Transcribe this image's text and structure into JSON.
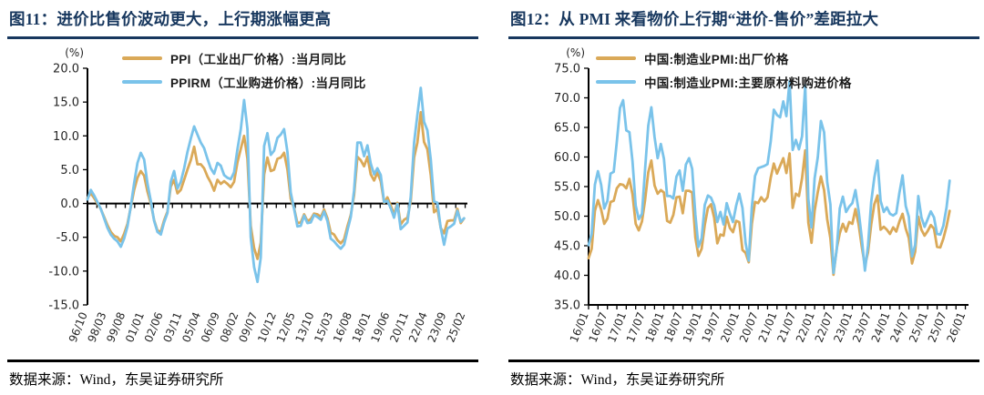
{
  "panels": [
    {
      "title": "图11：进价比售价波动更大，上行期涨幅更高",
      "source": "数据来源：Wind，东吴证券研究所"
    },
    {
      "title": "图12：从 PMI 来看物价上行期“进价-售价”差距拉大",
      "source": "数据来源：Wind，东吴证券研究所"
    }
  ],
  "colors": {
    "title_navy": "#17375E",
    "axis_black": "#000000",
    "ppi_tan": "#DAA958",
    "ppirm_blue": "#7AC3EA"
  },
  "chart_data": [
    {
      "type": "line",
      "key": "ppi-ppirm",
      "title": "图11：进价比售价波动更大，上行期涨幅更高",
      "unit": "(%)",
      "ylim": [
        -15,
        20
      ],
      "yticks": [
        20,
        15,
        10,
        5,
        0,
        -5,
        -10,
        -15
      ],
      "x_axis_at": 0,
      "xlabels": [
        "96/10",
        "98/03",
        "99/08",
        "01/01",
        "02/06",
        "03/11",
        "05/04",
        "06/09",
        "08/02",
        "09/07",
        "10/12",
        "12/05",
        "13/10",
        "15/03",
        "16/08",
        "18/01",
        "19/06",
        "20/11",
        "22/04",
        "23/09",
        "25/02"
      ],
      "xlabel_month_step": 17,
      "x_total_months": 342,
      "grid": "off",
      "legend_position": "top",
      "series": [
        {
          "key": "ppi",
          "name": "PPI（工业出厂价格）:当月同比",
          "color": "#DAA958",
          "start_month": 0,
          "month_step": 3,
          "values": [
            0.8,
            1.5,
            0.8,
            0.0,
            -0.8,
            -2.0,
            -3.2,
            -4.2,
            -4.8,
            -5.0,
            -5.6,
            -4.5,
            -3.0,
            -0.5,
            2.0,
            3.8,
            4.8,
            4.1,
            1.8,
            0.0,
            -2.5,
            -4.0,
            -4.2,
            -2.5,
            -1.2,
            2.5,
            3.5,
            1.5,
            2.0,
            3.5,
            5.0,
            6.4,
            8.4,
            5.8,
            5.8,
            5.2,
            4.0,
            3.1,
            1.9,
            3.5,
            2.9,
            3.3,
            2.9,
            2.4,
            3.2,
            6.1,
            8.1,
            10.0,
            6.6,
            -3.3,
            -6.6,
            -8.2,
            -5.8,
            4.3,
            6.8,
            4.8,
            5.0,
            6.6,
            6.8,
            7.5,
            5.0,
            0.7,
            -0.7,
            -2.9,
            -2.8,
            -1.6,
            -2.6,
            -2.3,
            -1.5,
            -1.6,
            -2.0,
            -0.9,
            -2.2,
            -4.3,
            -4.6,
            -5.4,
            -5.9,
            -5.3,
            -3.4,
            -1.7,
            1.2,
            6.9,
            6.4,
            5.5,
            6.9,
            4.3,
            3.4,
            4.6,
            3.3,
            0.1,
            0.9,
            -0.3,
            -1.6,
            0.1,
            -3.1,
            -2.4,
            -2.1,
            0.3,
            6.8,
            9.0,
            13.5,
            9.1,
            8.0,
            4.2,
            -1.3,
            -0.8,
            -3.6,
            -4.4,
            -2.6,
            -2.5,
            -2.5,
            -0.8,
            -2.9,
            -2.2
          ]
        },
        {
          "key": "ppirm",
          "name": "PPIRM（工业购进价格）:当月同比",
          "color": "#7AC3EA",
          "start_month": 0,
          "month_step": 3,
          "values": [
            0.6,
            2.0,
            1.2,
            0.2,
            -0.8,
            -2.2,
            -3.6,
            -4.6,
            -5.2,
            -5.6,
            -6.4,
            -5.2,
            -3.4,
            -0.4,
            3.0,
            6.0,
            7.5,
            6.5,
            3.0,
            0.4,
            -2.6,
            -4.2,
            -4.6,
            -2.8,
            -1.4,
            3.2,
            4.8,
            2.2,
            3.2,
            5.2,
            7.6,
            9.6,
            11.4,
            10.2,
            9.0,
            8.2,
            6.6,
            5.2,
            4.4,
            6.0,
            5.6,
            4.2,
            3.8,
            3.6,
            4.6,
            8.0,
            11.0,
            15.3,
            11.0,
            -5.0,
            -9.4,
            -11.6,
            -8.0,
            8.5,
            10.4,
            7.2,
            7.8,
            9.7,
            10.2,
            11.0,
            7.6,
            1.6,
            -0.8,
            -3.4,
            -3.3,
            -1.8,
            -2.9,
            -2.8,
            -1.7,
            -2.0,
            -2.4,
            -1.2,
            -2.6,
            -5.2,
            -5.6,
            -6.2,
            -6.7,
            -6.1,
            -4.0,
            -2.0,
            1.9,
            9.0,
            9.0,
            7.0,
            8.6,
            5.9,
            4.3,
            5.2,
            4.2,
            0.2,
            0.4,
            -0.7,
            -2.1,
            -0.1,
            -3.8,
            -3.3,
            -2.8,
            1.0,
            9.0,
            13.1,
            17.1,
            12.1,
            10.8,
            6.5,
            0.3,
            0.1,
            -3.6,
            -6.1,
            -3.7,
            -3.4,
            -3.0,
            -1.1,
            -2.7,
            -2.2
          ]
        }
      ]
    },
    {
      "type": "line",
      "key": "pmi-prices",
      "title": "图12：从 PMI 来看物价上行期“进价-售价”差距拉大",
      "unit": "(%)",
      "ylim": [
        35,
        75
      ],
      "yticks": [
        75,
        70,
        65,
        60,
        55,
        50,
        45,
        40,
        35
      ],
      "x_axis_at": 35,
      "xlabels": [
        "16/01",
        "16/07",
        "17/01",
        "17/07",
        "18/01",
        "18/07",
        "19/01",
        "19/07",
        "20/01",
        "20/07",
        "21/01",
        "21/07",
        "22/01",
        "22/07",
        "23/01",
        "23/07",
        "24/01",
        "24/07",
        "25/01",
        "25/07",
        "26/01"
      ],
      "xlabel_month_step": 6,
      "x_total_months": 121,
      "grid": "off",
      "legend_position": "top",
      "series": [
        {
          "key": "pmi-output-price",
          "name": "中国:制造业PMI:出厂价格",
          "color": "#DAA958",
          "start_month": 0,
          "month_step": 1,
          "values": [
            42.9,
            44.5,
            50.9,
            52.7,
            51.1,
            48.7,
            49.6,
            52.4,
            52.6,
            54.7,
            55.4,
            55.3,
            54.7,
            56.3,
            53.7,
            48.7,
            47.6,
            49.1,
            52.7,
            57.4,
            59.4,
            55.2,
            53.8,
            54.4,
            54.0,
            49.2,
            48.9,
            50.2,
            53.2,
            53.3,
            50.5,
            54.3,
            54.3,
            54.0,
            46.4,
            43.3,
            44.5,
            48.5,
            51.4,
            52.0,
            49.7,
            45.4,
            46.9,
            46.7,
            49.9,
            48.0,
            47.3,
            49.2,
            49.0,
            44.3,
            43.8,
            42.2,
            48.7,
            52.4,
            52.2,
            53.2,
            52.5,
            53.2,
            56.5,
            58.9,
            57.2,
            58.5,
            59.8,
            57.3,
            60.6,
            51.4,
            53.8,
            53.4,
            56.4,
            61.1,
            48.9,
            45.5,
            50.9,
            54.1,
            56.7,
            54.4,
            49.5,
            46.3,
            40.1,
            44.5,
            47.1,
            48.7,
            47.4,
            49.0,
            48.7,
            51.2,
            48.6,
            44.9,
            41.6,
            43.9,
            48.6,
            52.0,
            53.5,
            47.7,
            48.2,
            47.7,
            47.0,
            48.1,
            47.4,
            49.1,
            50.4,
            47.9,
            46.3,
            42.0,
            44.0,
            49.9,
            47.7,
            46.7,
            47.5,
            48.5,
            47.9,
            44.8,
            44.7,
            46.2,
            48.3,
            50.9
          ]
        },
        {
          "key": "pmi-input-price",
          "name": "中国:制造业PMI:主要原材料购进价格",
          "color": "#7AC3EA",
          "start_month": 0,
          "month_step": 1,
          "values": [
            45.1,
            47.0,
            55.3,
            57.6,
            55.3,
            51.3,
            52.6,
            57.2,
            57.5,
            62.6,
            68.3,
            69.6,
            64.5,
            64.2,
            59.3,
            51.8,
            49.5,
            50.4,
            57.9,
            65.3,
            68.4,
            63.4,
            59.8,
            62.2,
            59.7,
            53.4,
            53.4,
            53.0,
            56.7,
            57.7,
            54.3,
            58.7,
            59.8,
            58.0,
            50.3,
            44.8,
            46.3,
            51.9,
            53.5,
            53.1,
            51.8,
            49.0,
            50.7,
            48.6,
            52.2,
            50.4,
            49.0,
            51.8,
            53.8,
            51.4,
            45.5,
            42.5,
            51.6,
            56.8,
            58.1,
            58.3,
            58.5,
            58.8,
            62.6,
            68.0,
            67.1,
            66.7,
            69.4,
            66.9,
            72.8,
            61.2,
            62.9,
            61.3,
            63.5,
            72.1,
            52.9,
            48.1,
            56.4,
            60.0,
            66.1,
            64.2,
            55.8,
            52.0,
            40.4,
            44.3,
            51.3,
            53.3,
            50.7,
            51.6,
            52.2,
            54.4,
            50.9,
            46.4,
            40.8,
            45.0,
            52.4,
            56.5,
            59.4,
            52.6,
            50.7,
            51.5,
            50.4,
            50.1,
            50.5,
            54.0,
            56.9,
            51.7,
            49.9,
            43.2,
            45.1,
            53.4,
            49.8,
            48.2,
            49.5,
            50.8,
            49.8,
            47.0,
            46.9,
            48.4,
            51.5,
            56.0
          ]
        }
      ]
    }
  ]
}
